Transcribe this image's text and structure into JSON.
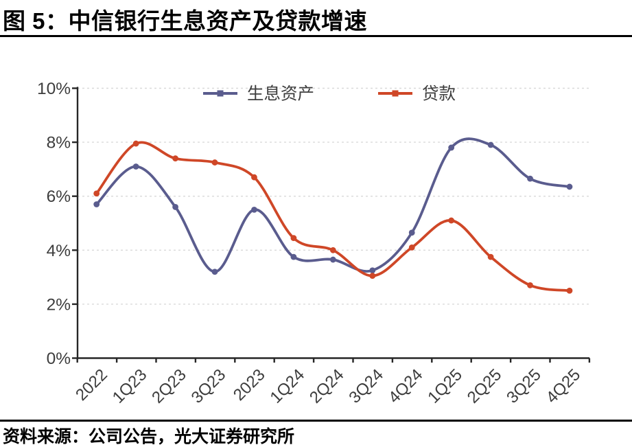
{
  "header": {
    "title": "图 5：中信银行生息资产及贷款增速"
  },
  "footer": {
    "source": "资料来源：公司公告，光大证券研究所"
  },
  "colors": {
    "assets_line": "#5a5c8e",
    "loans_line": "#cf4727",
    "gridline": "#d9d9d9",
    "axis": "#262626",
    "tick_label": "#3d3d3d"
  },
  "chart_data": {
    "type": "line",
    "title": "中信银行生息资产及贷款增速",
    "categories": [
      "2022",
      "1Q23",
      "2Q23",
      "3Q23",
      "2023",
      "1Q24",
      "2Q24",
      "3Q24",
      "4Q24",
      "1Q25",
      "2Q25",
      "3Q25",
      "4Q25"
    ],
    "series": [
      {
        "name": "生息资产",
        "color": "#5a5c8e",
        "values": [
          5.7,
          7.1,
          5.6,
          3.2,
          5.5,
          3.75,
          3.65,
          3.25,
          4.65,
          7.8,
          7.9,
          6.65,
          6.35
        ]
      },
      {
        "name": "贷款",
        "color": "#cf4727",
        "values": [
          6.1,
          7.95,
          7.4,
          7.25,
          6.7,
          4.45,
          4.0,
          3.05,
          4.1,
          5.1,
          3.75,
          2.7,
          2.5
        ]
      }
    ],
    "ylim": [
      0,
      10
    ],
    "yticks": [
      0,
      2,
      4,
      6,
      8,
      10
    ],
    "ytick_suffix": "%",
    "grid": "horizontal-dotted",
    "legend_position": "top-center",
    "line_style": "smooth",
    "marker": "circle"
  }
}
